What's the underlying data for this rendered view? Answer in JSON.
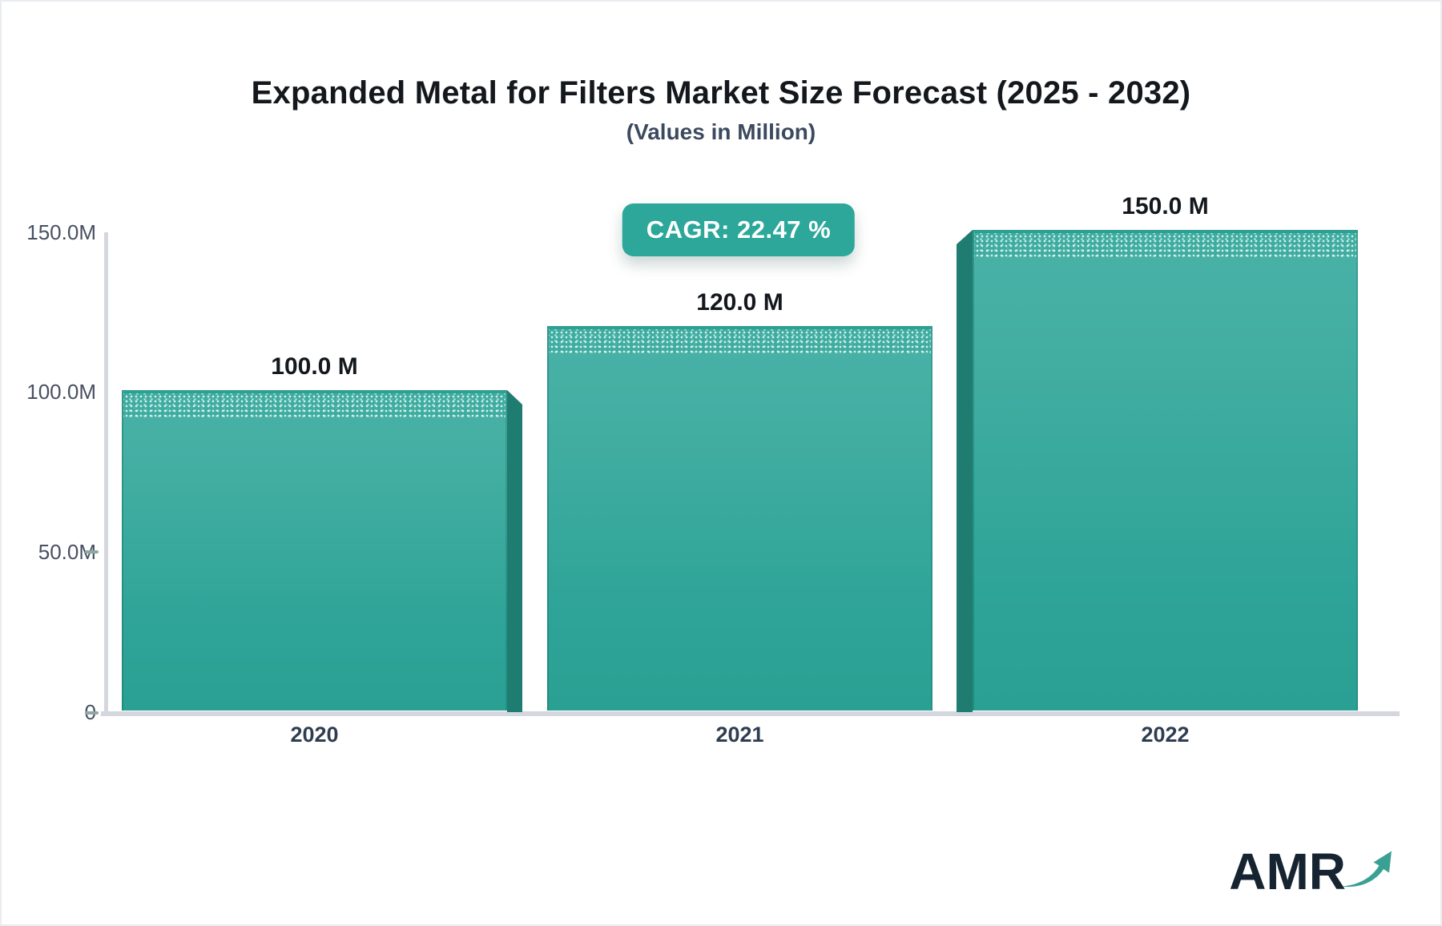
{
  "header": {
    "title": "Expanded Metal for Filters Market Size Forecast (2025 - 2032)",
    "subtitle": "(Values in Million)"
  },
  "cagr_badge": {
    "label": "CAGR: 22.47 %",
    "background": "#2ca79a",
    "text_color": "#ffffff"
  },
  "chart_data": {
    "type": "bar",
    "title": "Expanded Metal for Filters Market Size Forecast (2025 - 2032)",
    "subtitle": "(Values in Million)",
    "xlabel": "",
    "ylabel": "",
    "unit": "Million",
    "categories": [
      "2020",
      "2021",
      "2022"
    ],
    "values": [
      100.0,
      120.0,
      150.0
    ],
    "value_labels": [
      "100.0 M",
      "120.0 M",
      "150.0 M"
    ],
    "ylim": [
      0,
      150
    ],
    "ytick_labels": [
      "150.0M",
      "100.0M",
      "50.0M",
      "0"
    ],
    "grid": false,
    "legend": false,
    "bar_color_top": "#4ab2a8",
    "bar_color_bottom": "#2aa093",
    "bar_side_color": "#1f7c71",
    "axis_color": "#d4d7de"
  },
  "logo": {
    "text": "AMR",
    "arrow_color": "#3aa093",
    "text_color": "#152430"
  }
}
